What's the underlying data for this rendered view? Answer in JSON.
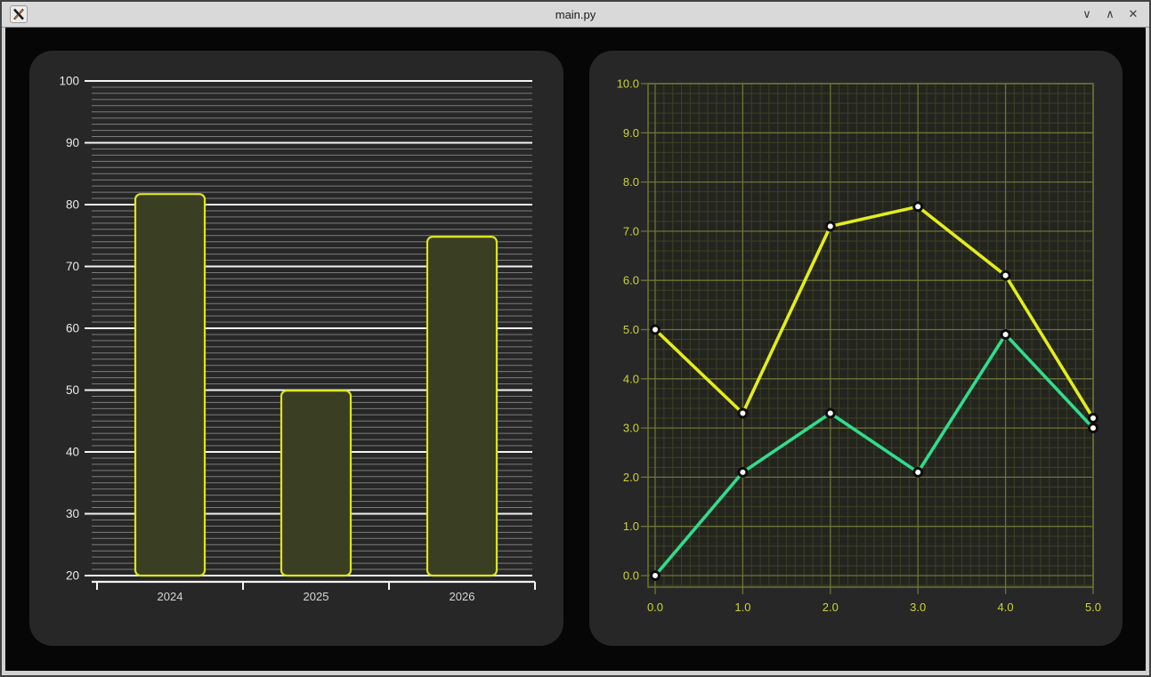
{
  "window": {
    "title": "main.py",
    "app_icon": "x11-logo-icon",
    "controls": {
      "minimize": "∨",
      "maximize": "∧",
      "close": "✕"
    }
  },
  "colors": {
    "titlebar_bg": "#d9d9d9",
    "titlebar_text": "#1c1c1c",
    "frame_border": "#d2d2d2",
    "desktop_bg": "#060606",
    "panel_bg": "#272727",
    "bar_fill": "#3a3e23",
    "bar_border": "#dce51d",
    "bar_major_grid": "#f3f3f3",
    "bar_minor_grid": "#8b8b8b",
    "bar_tick_label": "#eaeaea",
    "bar_cat_label": "#d6d6d6",
    "line_plot_bg": "#24241f",
    "line_major_grid": "#6e7434",
    "line_minor_grid": "#3b4025",
    "line_tick_label": "#ccd435",
    "series_yellow": "#e3ed1b",
    "series_green": "#31dc8e",
    "marker_fill": "#ffffff",
    "marker_stroke": "#0d0d0d"
  },
  "chart_data": [
    {
      "type": "bar",
      "title": "",
      "categories": [
        "2024",
        "2025",
        "2026"
      ],
      "values": [
        81.7,
        49.9,
        74.8
      ],
      "xlabel": "",
      "ylabel": "",
      "ylim": [
        20,
        100
      ],
      "yticks": [
        20,
        30,
        40,
        50,
        60,
        70,
        80,
        90,
        100
      ],
      "y_minor_step": 1,
      "grid": "horizontal major white + minor gray",
      "legend": "none"
    },
    {
      "type": "line",
      "title": "",
      "x": [
        0,
        1,
        2,
        3,
        4,
        5
      ],
      "series": [
        {
          "name": "yellow-series",
          "color": "#e3ed1b",
          "values": [
            5.0,
            3.3,
            7.1,
            7.5,
            6.1,
            3.2
          ]
        },
        {
          "name": "green-series",
          "color": "#31dc8e",
          "values": [
            0.0,
            2.1,
            3.3,
            2.1,
            4.9,
            3.0
          ]
        }
      ],
      "xlim": [
        -0.08,
        5.0
      ],
      "ylim": [
        -0.24,
        10.0
      ],
      "xticks": [
        "0.0",
        "1.0",
        "2.0",
        "3.0",
        "4.0",
        "5.0"
      ],
      "yticks": [
        "0.0",
        "1.0",
        "2.0",
        "3.0",
        "4.0",
        "5.0",
        "6.0",
        "7.0",
        "8.0",
        "9.0",
        "10.0"
      ],
      "x_minor_step": 0.1,
      "y_minor_step": 0.2,
      "grid": "full major+minor olive grid",
      "markers": "white-circle-black-ring",
      "legend": "none"
    }
  ]
}
